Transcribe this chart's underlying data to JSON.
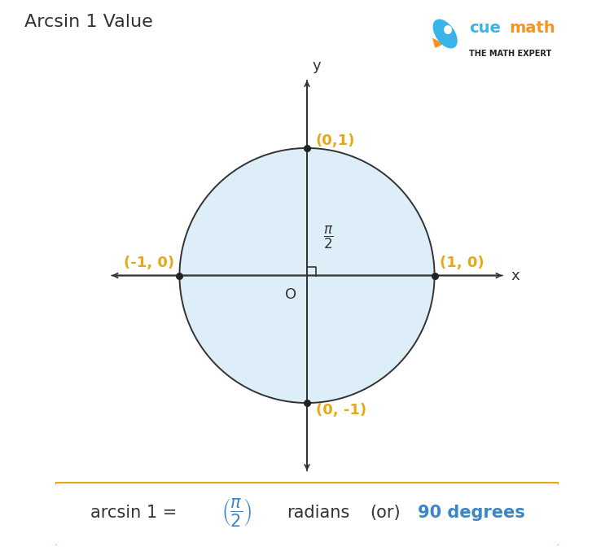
{
  "title": "Arcsin 1 Value",
  "title_fontsize": 16,
  "title_color": "#333333",
  "background_color": "#ffffff",
  "circle_fill_color": "#ddeef8",
  "circle_edge_color": "#333333",
  "axis_color": "#333333",
  "point_color": "#222222",
  "label_color": "#e6a817",
  "label_color_blue": "#3a7dc9",
  "origin_label": "O",
  "x_label": "x",
  "y_label": "y",
  "formula_box_color": "#e6a817",
  "formula_text_color": "#333333",
  "formula_blue_color": "#3a86c8",
  "cuemath_blue": "#3ab4e8",
  "cuemath_orange": "#f7941d",
  "cuemath_dark": "#222222"
}
